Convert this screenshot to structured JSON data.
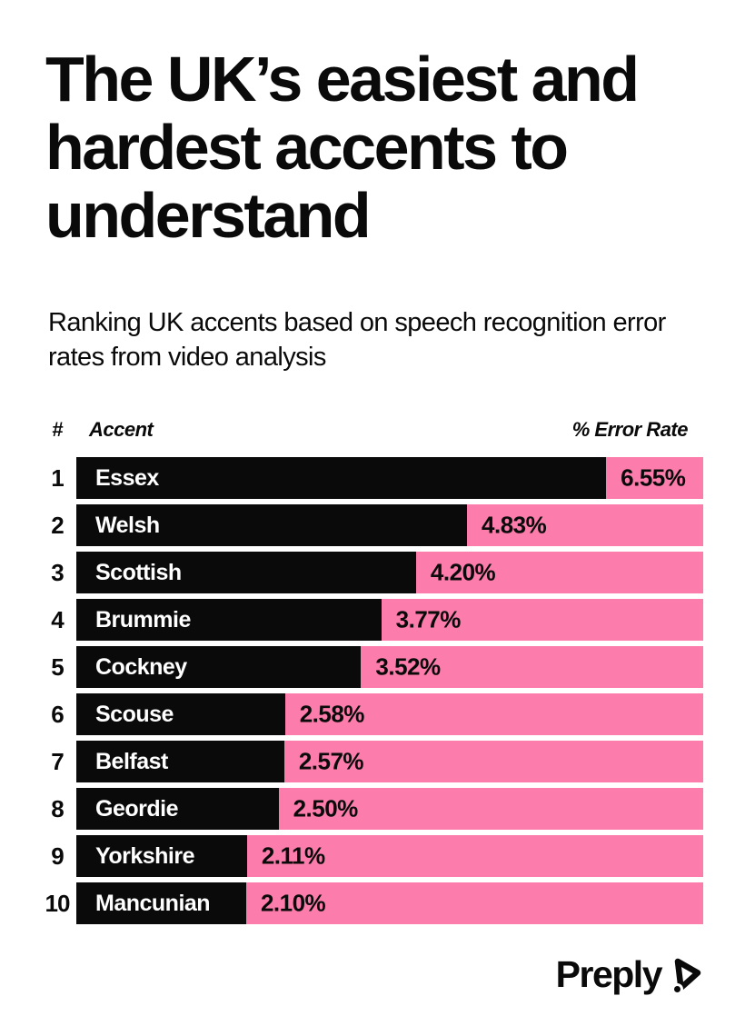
{
  "page": {
    "title": "The UK’s easiest and hardest accents to understand",
    "subtitle": "Ranking UK accents based on speech recognition error rates from video analysis"
  },
  "table_header": {
    "rank": "#",
    "accent": "Accent",
    "error_rate": "% Error Rate"
  },
  "chart_data": {
    "type": "bar",
    "orientation": "horizontal",
    "title": "The UK’s easiest and hardest accents to understand",
    "subtitle": "Ranking UK accents based on speech recognition error rates from video analysis",
    "ranks": [
      1,
      2,
      3,
      4,
      5,
      6,
      7,
      8,
      9,
      10
    ],
    "categories": [
      "Essex",
      "Welsh",
      "Scottish",
      "Brummie",
      "Cockney",
      "Scouse",
      "Belfast",
      "Geordie",
      "Yorkshire",
      "Mancunian"
    ],
    "values": [
      6.55,
      4.83,
      4.2,
      3.77,
      3.52,
      2.58,
      2.57,
      2.5,
      2.11,
      2.1
    ],
    "labels": [
      "6.55%",
      "4.83%",
      "4.20%",
      "3.77%",
      "3.52%",
      "2.58%",
      "2.57%",
      "2.50%",
      "2.11%",
      "2.10%"
    ],
    "xlabel": "% Error Rate",
    "ylabel": "Accent",
    "xlim": [
      0,
      7.75
    ],
    "grid": false,
    "legend": false,
    "bar_color": "#0A0A0A",
    "track_color": "#FC7DAB"
  },
  "branding": {
    "logo_text": "Preply",
    "logo_icon": "preply-speech-bubble-icon"
  },
  "colors": {
    "background": "#FFFFFF",
    "bar": "#0A0A0A",
    "track": "#FC7DAB",
    "text": "#0A0A0A",
    "bar_label_text": "#FFFFFF"
  }
}
